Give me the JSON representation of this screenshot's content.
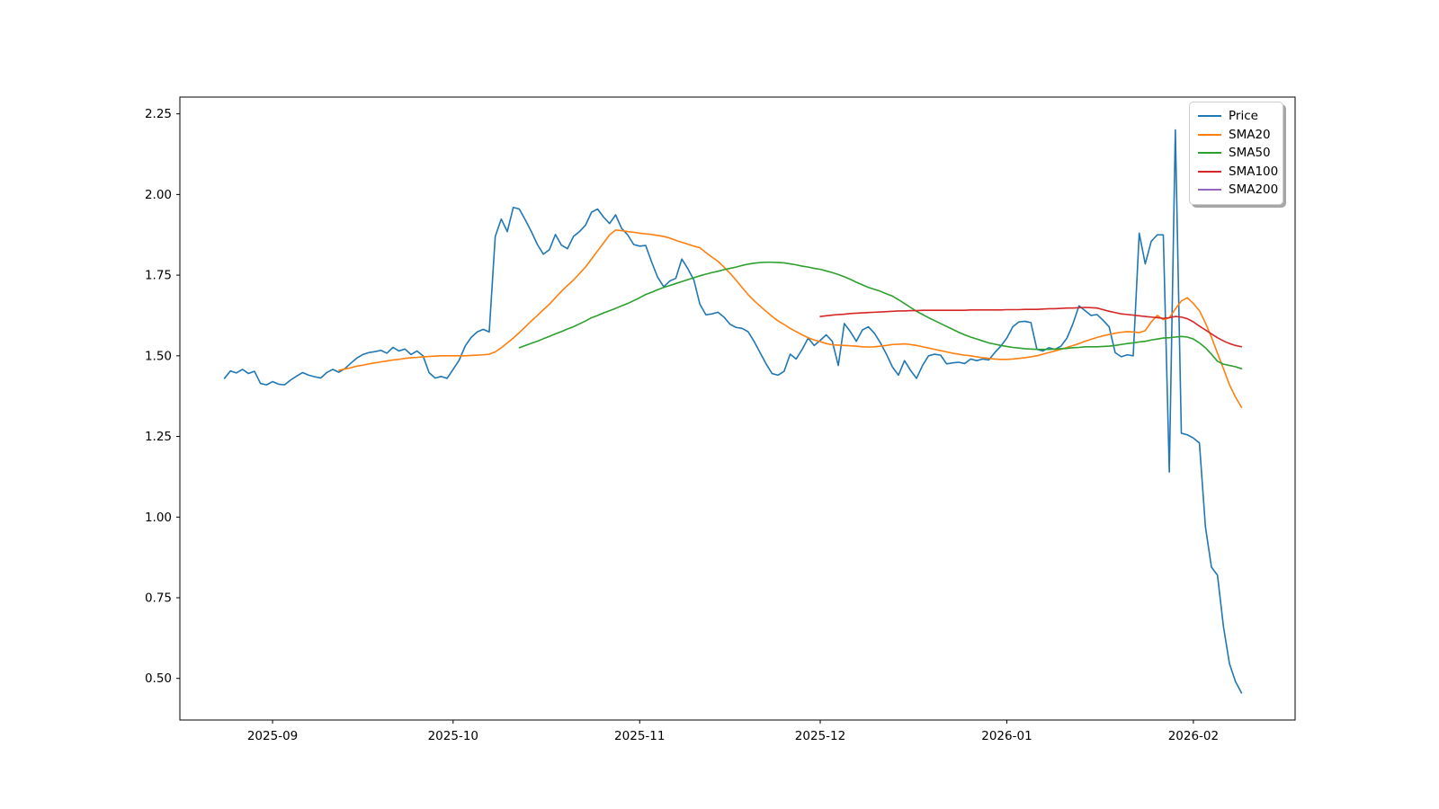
{
  "chart_data": {
    "type": "line",
    "title": "",
    "xlabel": "",
    "ylabel": "",
    "grid": false,
    "legend_position": "upper right",
    "background_color": "#ffffff",
    "axes": {
      "x_start_date": "2025-08-24",
      "x_unit": "daily",
      "xlim_day_indices": [
        -7.4,
        177.9
      ],
      "ylim": [
        0.371,
        2.302
      ],
      "xticks": [
        {
          "label": "2025-09",
          "day": 8
        },
        {
          "label": "2025-10",
          "day": 38
        },
        {
          "label": "2025-11",
          "day": 69
        },
        {
          "label": "2025-12",
          "day": 99
        },
        {
          "label": "2026-01",
          "day": 130
        },
        {
          "label": "2026-02",
          "day": 161
        }
      ],
      "yticks": [
        {
          "label": "0.50",
          "value": 0.5
        },
        {
          "label": "0.75",
          "value": 0.75
        },
        {
          "label": "1.00",
          "value": 1.0
        },
        {
          "label": "1.25",
          "value": 1.25
        },
        {
          "label": "1.50",
          "value": 1.5
        },
        {
          "label": "1.75",
          "value": 1.75
        },
        {
          "label": "2.00",
          "value": 2.0
        },
        {
          "label": "2.25",
          "value": 2.25
        }
      ]
    },
    "series": [
      {
        "name": "Price",
        "color": "#1f77b4",
        "start_index": 0,
        "values": [
          1.43,
          1.453,
          1.447,
          1.458,
          1.445,
          1.452,
          1.414,
          1.41,
          1.42,
          1.412,
          1.41,
          1.425,
          1.437,
          1.448,
          1.44,
          1.435,
          1.431,
          1.448,
          1.458,
          1.449,
          1.46,
          1.477,
          1.493,
          1.504,
          1.51,
          1.513,
          1.517,
          1.508,
          1.526,
          1.515,
          1.521,
          1.504,
          1.515,
          1.5,
          1.448,
          1.431,
          1.436,
          1.43,
          1.458,
          1.486,
          1.53,
          1.557,
          1.574,
          1.582,
          1.574,
          1.87,
          1.924,
          1.885,
          1.96,
          1.955,
          1.921,
          1.885,
          1.845,
          1.815,
          1.829,
          1.876,
          1.843,
          1.832,
          1.87,
          1.885,
          1.905,
          1.945,
          1.955,
          1.93,
          1.91,
          1.937,
          1.895,
          1.875,
          1.845,
          1.84,
          1.842,
          1.79,
          1.743,
          1.714,
          1.732,
          1.74,
          1.8,
          1.77,
          1.735,
          1.66,
          1.627,
          1.63,
          1.635,
          1.62,
          1.598,
          1.588,
          1.585,
          1.575,
          1.545,
          1.51,
          1.475,
          1.445,
          1.44,
          1.452,
          1.505,
          1.49,
          1.52,
          1.555,
          1.532,
          1.548,
          1.565,
          1.545,
          1.47,
          1.6,
          1.575,
          1.545,
          1.58,
          1.59,
          1.57,
          1.54,
          1.505,
          1.465,
          1.44,
          1.485,
          1.455,
          1.43,
          1.47,
          1.5,
          1.505,
          1.502,
          1.475,
          1.478,
          1.48,
          1.476,
          1.49,
          1.485,
          1.49,
          1.487,
          1.51,
          1.53,
          1.555,
          1.59,
          1.605,
          1.607,
          1.603,
          1.52,
          1.515,
          1.525,
          1.52,
          1.53,
          1.555,
          1.6,
          1.655,
          1.64,
          1.625,
          1.628,
          1.61,
          1.59,
          1.51,
          1.497,
          1.503,
          1.5,
          1.88,
          1.785,
          1.855,
          1.875,
          1.875,
          1.14,
          2.2,
          1.26,
          1.255,
          1.245,
          1.23,
          0.97,
          0.845,
          0.82,
          0.66,
          0.545,
          0.49,
          0.455
        ]
      },
      {
        "name": "SMA20",
        "color": "#ff7f0e",
        "start_index": 19,
        "values": [
          1.455,
          1.459,
          1.463,
          1.468,
          1.471,
          1.475,
          1.478,
          1.481,
          1.484,
          1.487,
          1.489,
          1.492,
          1.494,
          1.495,
          1.497,
          1.498,
          1.499,
          1.5,
          1.5,
          1.5,
          1.5,
          1.5,
          1.501,
          1.502,
          1.503,
          1.505,
          1.512,
          1.525,
          1.54,
          1.555,
          1.572,
          1.59,
          1.608,
          1.625,
          1.643,
          1.66,
          1.68,
          1.7,
          1.718,
          1.735,
          1.755,
          1.775,
          1.8,
          1.825,
          1.85,
          1.875,
          1.89,
          1.888,
          1.885,
          1.883,
          1.88,
          1.878,
          1.876,
          1.873,
          1.87,
          1.865,
          1.858,
          1.852,
          1.846,
          1.84,
          1.835,
          1.82,
          1.806,
          1.793,
          1.775,
          1.756,
          1.735,
          1.712,
          1.69,
          1.671,
          1.654,
          1.638,
          1.622,
          1.608,
          1.597,
          1.585,
          1.575,
          1.565,
          1.556,
          1.549,
          1.544,
          1.538,
          1.534,
          1.533,
          1.532,
          1.531,
          1.53,
          1.528,
          1.527,
          1.528,
          1.53,
          1.532,
          1.535,
          1.536,
          1.537,
          1.535,
          1.532,
          1.528,
          1.524,
          1.52,
          1.516,
          1.512,
          1.508,
          1.505,
          1.502,
          1.5,
          1.497,
          1.494,
          1.492,
          1.49,
          1.489,
          1.489,
          1.49,
          1.492,
          1.494,
          1.497,
          1.5,
          1.505,
          1.51,
          1.515,
          1.52,
          1.526,
          1.532,
          1.538,
          1.545,
          1.551,
          1.557,
          1.562,
          1.566,
          1.57,
          1.573,
          1.575,
          1.574,
          1.572,
          1.578,
          1.605,
          1.625,
          1.612,
          1.618,
          1.645,
          1.67,
          1.68,
          1.662,
          1.64,
          1.602,
          1.558,
          1.508,
          1.46,
          1.41,
          1.372,
          1.34
        ]
      },
      {
        "name": "SMA50",
        "color": "#2ca02c",
        "start_index": 49,
        "values": [
          1.525,
          1.532,
          1.539,
          1.545,
          1.553,
          1.56,
          1.568,
          1.575,
          1.583,
          1.59,
          1.599,
          1.608,
          1.618,
          1.625,
          1.633,
          1.64,
          1.647,
          1.655,
          1.662,
          1.671,
          1.68,
          1.69,
          1.697,
          1.705,
          1.712,
          1.718,
          1.724,
          1.73,
          1.736,
          1.742,
          1.748,
          1.753,
          1.758,
          1.762,
          1.767,
          1.771,
          1.775,
          1.78,
          1.784,
          1.787,
          1.789,
          1.79,
          1.79,
          1.789,
          1.788,
          1.785,
          1.782,
          1.778,
          1.775,
          1.771,
          1.768,
          1.763,
          1.758,
          1.752,
          1.745,
          1.737,
          1.728,
          1.72,
          1.712,
          1.706,
          1.7,
          1.692,
          1.685,
          1.674,
          1.662,
          1.65,
          1.638,
          1.628,
          1.618,
          1.609,
          1.6,
          1.591,
          1.582,
          1.573,
          1.565,
          1.558,
          1.552,
          1.546,
          1.54,
          1.536,
          1.532,
          1.529,
          1.526,
          1.524,
          1.522,
          1.521,
          1.52,
          1.52,
          1.52,
          1.521,
          1.522,
          1.523,
          1.525,
          1.526,
          1.528,
          1.528,
          1.528,
          1.529,
          1.53,
          1.532,
          1.535,
          1.538,
          1.54,
          1.543,
          1.545,
          1.549,
          1.552,
          1.555,
          1.556,
          1.558,
          1.56,
          1.558,
          1.552,
          1.54,
          1.525,
          1.505,
          1.483,
          1.474,
          1.47,
          1.466,
          1.46
        ]
      },
      {
        "name": "SMA100",
        "color": "#d62728",
        "start_index": 99,
        "values": [
          1.622,
          1.624,
          1.626,
          1.628,
          1.629,
          1.631,
          1.632,
          1.633,
          1.634,
          1.635,
          1.636,
          1.637,
          1.638,
          1.639,
          1.639,
          1.64,
          1.64,
          1.641,
          1.641,
          1.641,
          1.641,
          1.641,
          1.641,
          1.641,
          1.641,
          1.642,
          1.642,
          1.642,
          1.642,
          1.642,
          1.642,
          1.643,
          1.643,
          1.643,
          1.644,
          1.644,
          1.644,
          1.645,
          1.646,
          1.646,
          1.647,
          1.648,
          1.648,
          1.649,
          1.65,
          1.649,
          1.648,
          1.643,
          1.638,
          1.634,
          1.63,
          1.628,
          1.626,
          1.624,
          1.622,
          1.62,
          1.618,
          1.616,
          1.618,
          1.622,
          1.62,
          1.615,
          1.605,
          1.592,
          1.58,
          1.568,
          1.556,
          1.546,
          1.538,
          1.532,
          1.528
        ]
      },
      {
        "name": "SMA200",
        "color": "#9467bd",
        "start_index": null,
        "values": []
      }
    ]
  }
}
